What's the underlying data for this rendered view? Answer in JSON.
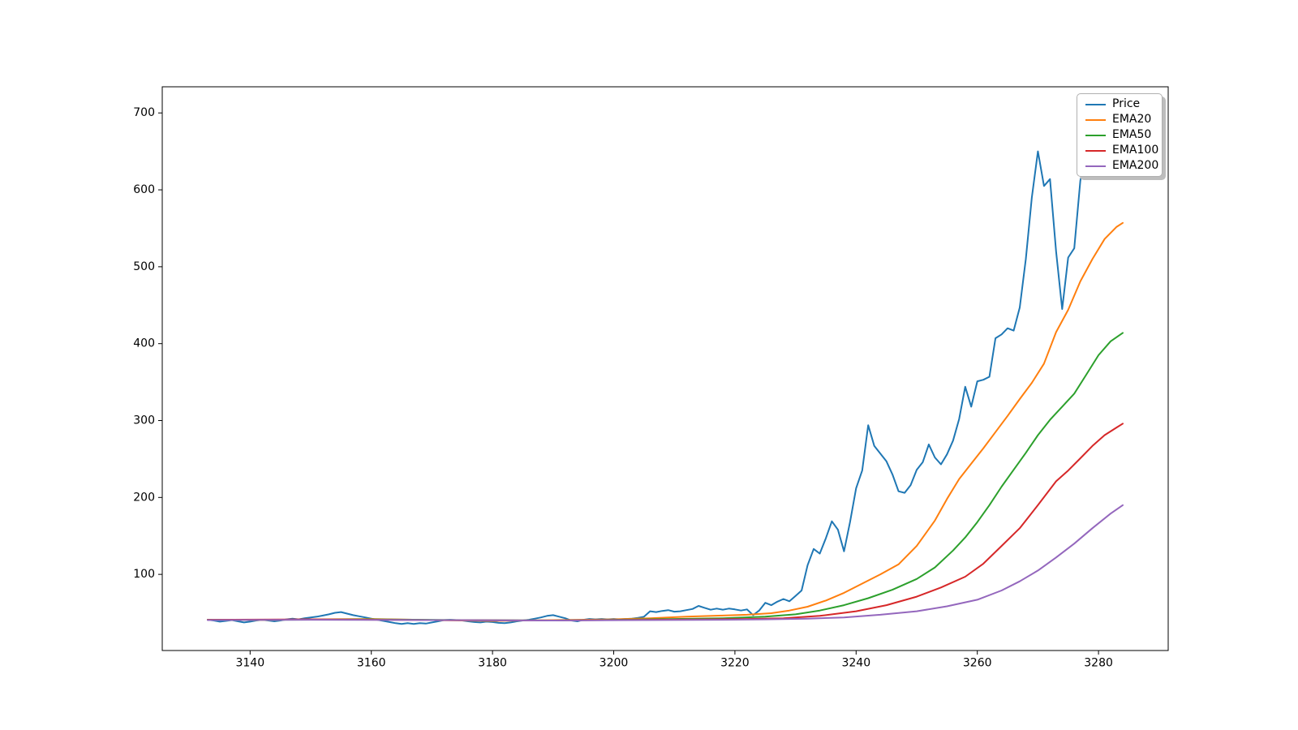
{
  "chart_data": {
    "type": "line",
    "title": "",
    "xlabel": "",
    "ylabel": "",
    "grid": false,
    "background_color": "#ffffff",
    "axes_color": "#000000",
    "xlim": [
      3125.5,
      3291.5
    ],
    "ylim": [
      1,
      734
    ],
    "x_ticks": [
      3140,
      3160,
      3180,
      3200,
      3220,
      3240,
      3260,
      3280
    ],
    "y_ticks": [
      100,
      200,
      300,
      400,
      500,
      600,
      700
    ],
    "legend_position": "upper right",
    "series": [
      {
        "name": "Price",
        "color": "#1f77b4",
        "x": [
          3133,
          3134,
          3135,
          3136,
          3137,
          3138,
          3139,
          3140,
          3141,
          3142,
          3143,
          3144,
          3145,
          3146,
          3147,
          3148,
          3149,
          3150,
          3151,
          3152,
          3153,
          3154,
          3155,
          3156,
          3157,
          3158,
          3159,
          3160,
          3161,
          3162,
          3163,
          3164,
          3165,
          3166,
          3167,
          3168,
          3169,
          3170,
          3171,
          3172,
          3173,
          3174,
          3175,
          3176,
          3177,
          3178,
          3179,
          3180,
          3181,
          3182,
          3183,
          3184,
          3185,
          3186,
          3187,
          3188,
          3189,
          3190,
          3191,
          3192,
          3193,
          3194,
          3195,
          3196,
          3197,
          3198,
          3199,
          3200,
          3201,
          3202,
          3203,
          3204,
          3205,
          3206,
          3207,
          3208,
          3209,
          3210,
          3211,
          3212,
          3213,
          3214,
          3215,
          3216,
          3217,
          3218,
          3219,
          3220,
          3221,
          3222,
          3223,
          3224,
          3225,
          3226,
          3227,
          3228,
          3229,
          3230,
          3231,
          3232,
          3233,
          3234,
          3235,
          3236,
          3237,
          3238,
          3239,
          3240,
          3241,
          3242,
          3243,
          3244,
          3245,
          3246,
          3247,
          3248,
          3249,
          3250,
          3251,
          3252,
          3253,
          3254,
          3255,
          3256,
          3257,
          3258,
          3259,
          3260,
          3261,
          3262,
          3263,
          3264,
          3265,
          3266,
          3267,
          3268,
          3269,
          3270,
          3271,
          3272,
          3273,
          3274,
          3275,
          3276,
          3277,
          3278,
          3279,
          3280,
          3281,
          3282,
          3283,
          3284
        ],
        "y": [
          41,
          40,
          38.5,
          39.5,
          40.5,
          39,
          37.5,
          38.5,
          40,
          41,
          40,
          39,
          40,
          41.5,
          42.5,
          41.5,
          43,
          44,
          45,
          46.5,
          48,
          50,
          51,
          49,
          47,
          45.5,
          44,
          42.5,
          41,
          39.5,
          38,
          36.5,
          35.5,
          36.5,
          35.5,
          36.5,
          36,
          37.5,
          39,
          40.5,
          41,
          40.5,
          40,
          39,
          38,
          37.5,
          38.5,
          38,
          37,
          36.5,
          37.5,
          39,
          40,
          41,
          42.5,
          44,
          46,
          47,
          45,
          43,
          40,
          39,
          41,
          42,
          41.5,
          42,
          41.5,
          42,
          41.5,
          42,
          42.5,
          43.5,
          45,
          52,
          51,
          52.5,
          53.5,
          51.5,
          52,
          53.5,
          55,
          59,
          56.5,
          54,
          55.5,
          54,
          55.5,
          54.5,
          53,
          54.5,
          47,
          53,
          63,
          60,
          64.5,
          68,
          65,
          72,
          79,
          112,
          133,
          127,
          147,
          169,
          158,
          130,
          168,
          212,
          235,
          294,
          267,
          257,
          247,
          230,
          208,
          206,
          216,
          236,
          246,
          269,
          252,
          243,
          256,
          274,
          302,
          344,
          318,
          351,
          353,
          357,
          407,
          412,
          420,
          417,
          447,
          510,
          590,
          650,
          605,
          614,
          520,
          445,
          512,
          524,
          612,
          650,
          660,
          670,
          680,
          690,
          695,
          700
        ]
      },
      {
        "name": "EMA20",
        "color": "#ff7f0e",
        "x": [
          3133,
          3141,
          3150,
          3160,
          3170,
          3180,
          3190,
          3200,
          3206,
          3212,
          3218,
          3222,
          3226,
          3229,
          3232,
          3235,
          3238,
          3241,
          3244,
          3247,
          3250,
          3253,
          3255,
          3257,
          3259,
          3261,
          3263,
          3265,
          3267,
          3269,
          3271,
          3273,
          3275,
          3277,
          3279,
          3281,
          3283,
          3284
        ],
        "y": [
          41,
          40.5,
          41.5,
          42,
          40.5,
          39.5,
          40.5,
          41.5,
          43,
          45,
          46.5,
          47.5,
          49.5,
          53,
          58,
          66,
          76,
          88,
          100,
          113,
          137,
          170,
          198,
          224,
          244,
          264,
          285,
          306,
          328,
          349,
          374,
          415,
          444,
          481,
          510,
          536,
          552,
          557
        ]
      },
      {
        "name": "EMA50",
        "color": "#2ca02c",
        "x": [
          3133,
          3145,
          3160,
          3175,
          3190,
          3200,
          3210,
          3218,
          3225,
          3230,
          3234,
          3238,
          3242,
          3246,
          3250,
          3253,
          3256,
          3258,
          3260,
          3262,
          3264,
          3266,
          3268,
          3270,
          3272,
          3274,
          3276,
          3278,
          3280,
          3282,
          3284
        ],
        "y": [
          41,
          41,
          41.5,
          40.5,
          40,
          41,
          42,
          43,
          45,
          48,
          53,
          60,
          69,
          80,
          94,
          109,
          131,
          148,
          168,
          190,
          214,
          236,
          258,
          281,
          301,
          318,
          335,
          360,
          385,
          403,
          414
        ]
      },
      {
        "name": "EMA100",
        "color": "#d62728",
        "x": [
          3133,
          3150,
          3170,
          3190,
          3205,
          3215,
          3222,
          3228,
          3234,
          3240,
          3245,
          3250,
          3254,
          3258,
          3261,
          3264,
          3267,
          3270,
          3273,
          3275,
          3277,
          3279,
          3281,
          3283,
          3284
        ],
        "y": [
          41,
          41.5,
          40.5,
          40,
          41,
          41.5,
          42,
          43,
          46,
          52,
          60,
          71,
          83,
          97,
          114,
          137,
          160,
          190,
          221,
          235,
          251,
          267,
          281,
          291,
          296
        ]
      },
      {
        "name": "EMA200",
        "color": "#9467bd",
        "x": [
          3133,
          3150,
          3170,
          3190,
          3205,
          3218,
          3225,
          3232,
          3238,
          3244,
          3250,
          3255,
          3260,
          3264,
          3267,
          3270,
          3273,
          3276,
          3279,
          3282,
          3284
        ],
        "y": [
          40.5,
          41,
          40.5,
          40,
          40.5,
          41,
          41.5,
          42.5,
          44,
          47.5,
          52,
          58.5,
          67,
          79,
          91,
          105,
          122,
          140,
          160,
          179,
          190
        ]
      }
    ]
  },
  "legend": {
    "background": "#ffffff",
    "border_color": "#b0b0b0",
    "shadow": true,
    "items": [
      {
        "label": "Price",
        "color": "#1f77b4"
      },
      {
        "label": "EMA20",
        "color": "#ff7f0e"
      },
      {
        "label": "EMA50",
        "color": "#2ca02c"
      },
      {
        "label": "EMA100",
        "color": "#d62728"
      },
      {
        "label": "EMA200",
        "color": "#9467bd"
      }
    ]
  }
}
